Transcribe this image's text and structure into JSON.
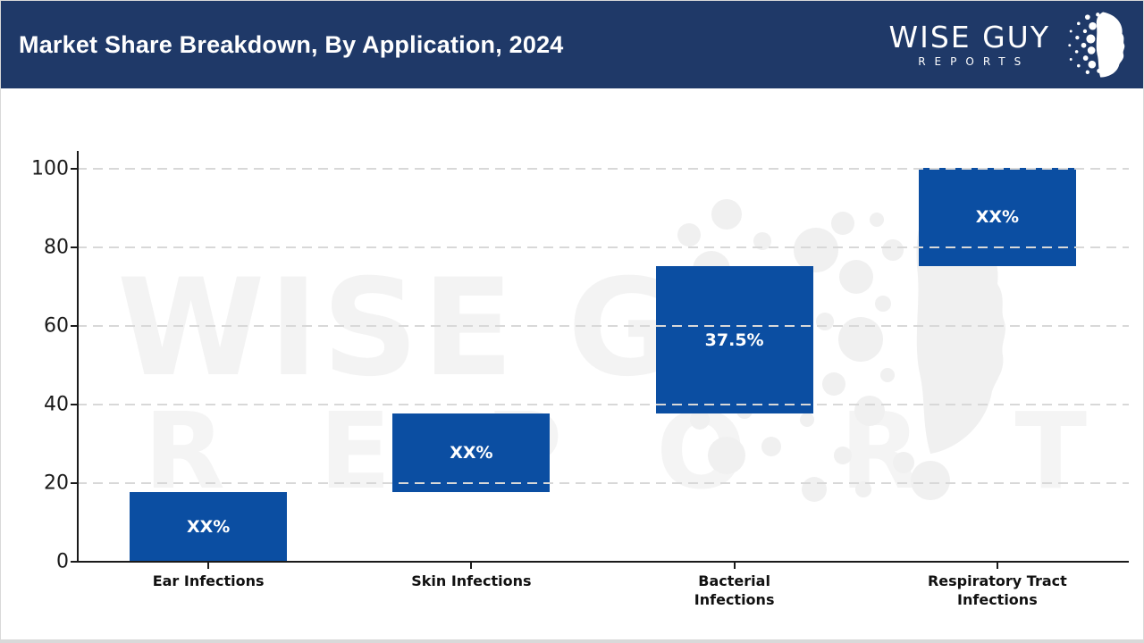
{
  "header": {
    "title": "Market Share Breakdown, By Application, 2024",
    "bg_color": "#1F3968",
    "logo": {
      "line1": "WISE GUY",
      "line2": "REPORTS"
    }
  },
  "watermark": {
    "line1": "WISE GU",
    "line2": "R E P O R T S"
  },
  "chart_data": {
    "type": "bar",
    "subtype": "waterfall",
    "title": "Market Share Breakdown, By Application, 2024",
    "categories": [
      "Ear Infections",
      "Skin Infections",
      "Bacterial\nInfections",
      "Respiratory Tract\nInfections"
    ],
    "bars": [
      {
        "category": "Ear Infections",
        "start": 0,
        "end": 17.5,
        "value": 17.5,
        "label": "XX%"
      },
      {
        "category": "Skin Infections",
        "start": 17.5,
        "end": 37.5,
        "value": 20,
        "label": "XX%"
      },
      {
        "category": "Bacterial Infections",
        "start": 37.5,
        "end": 75,
        "value": 37.5,
        "label": "37.5%"
      },
      {
        "category": "Respiratory Tract Infections",
        "start": 75,
        "end": 100,
        "value": 25,
        "label": "XX%"
      }
    ],
    "y_ticks": [
      0,
      20,
      40,
      60,
      80,
      100
    ],
    "ylim": [
      0,
      104
    ],
    "xlabel": "",
    "ylabel": "",
    "grid": true,
    "grid_style": "dashed",
    "legend": "none",
    "bar_color": "#0B4EA2",
    "bar_label_color": "#FFFFFF",
    "axis_color": "#1a1a1a"
  }
}
